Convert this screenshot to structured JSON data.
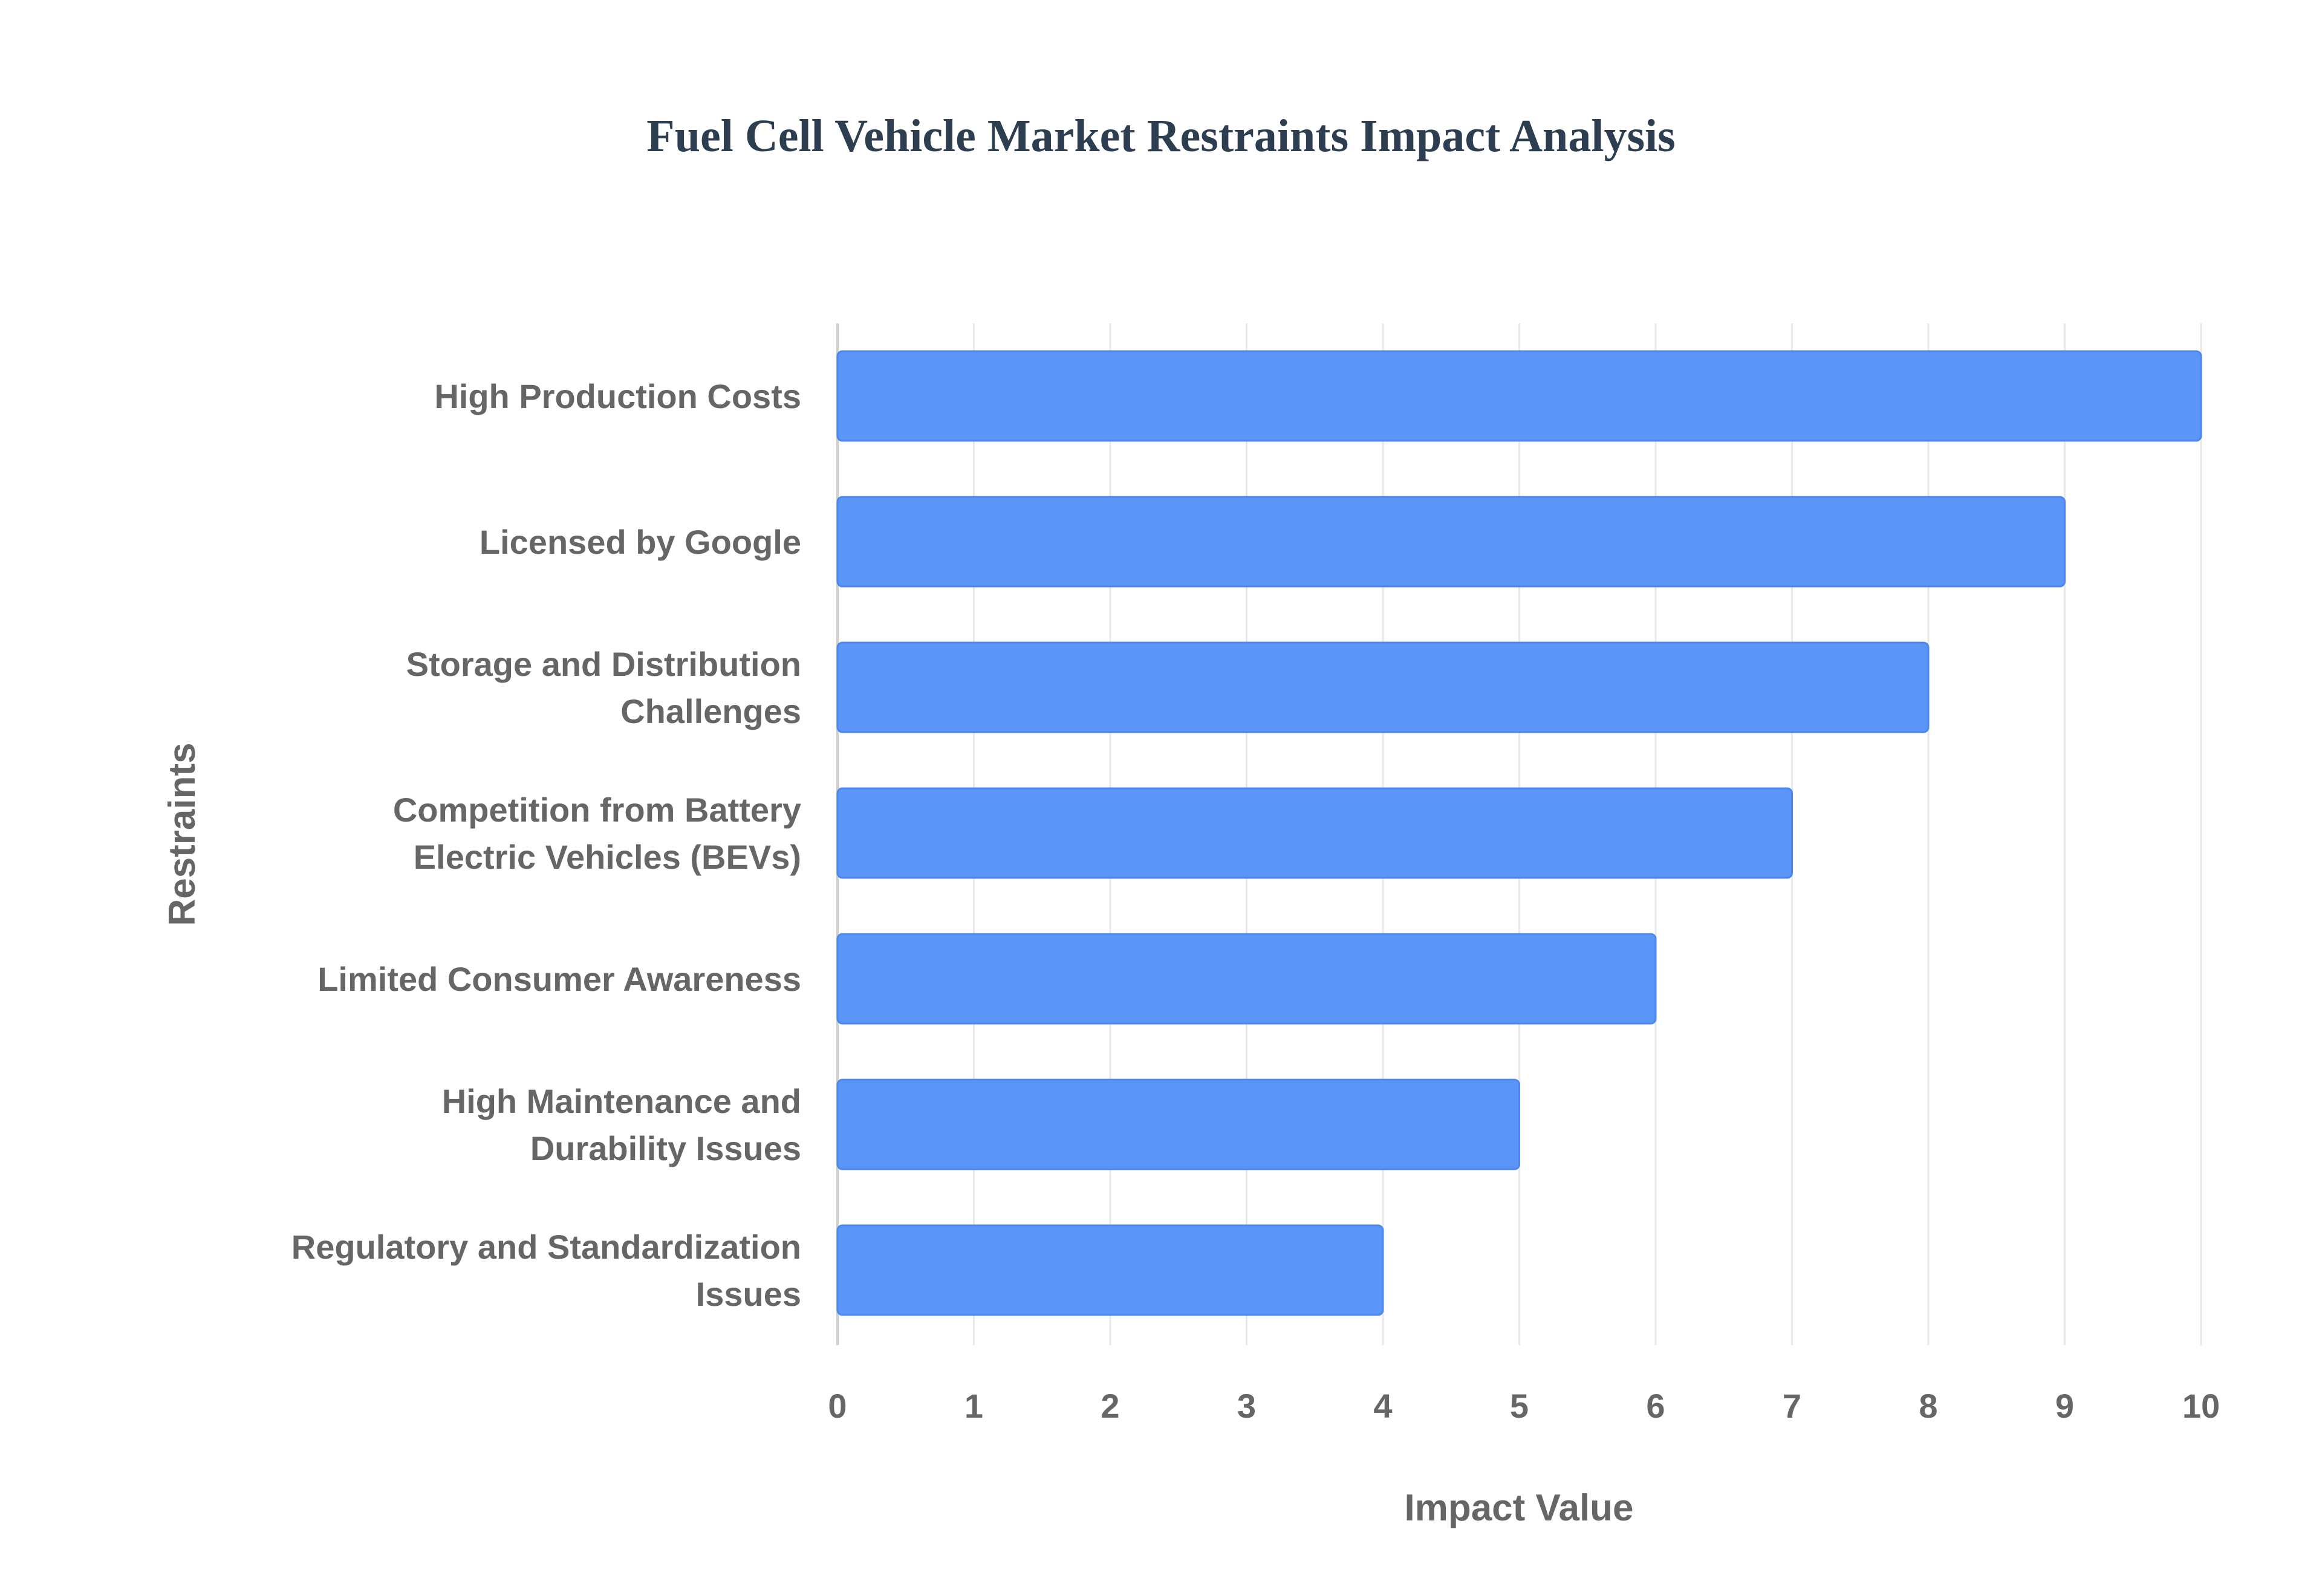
{
  "chart_data": {
    "type": "bar",
    "orientation": "horizontal",
    "title": "Fuel Cell Vehicle Market Restraints Impact Analysis",
    "xlabel": "Impact Value",
    "ylabel": "Restraints",
    "xlim": [
      0,
      10
    ],
    "xticks": [
      0,
      1,
      2,
      3,
      4,
      5,
      6,
      7,
      8,
      9,
      10
    ],
    "grid": true,
    "legend": "none",
    "categories": [
      [
        "High Production Costs"
      ],
      [
        "Licensed by Google"
      ],
      [
        "Storage and Distribution",
        "Challenges"
      ],
      [
        "Competition from Battery",
        "Electric Vehicles (BEVs)"
      ],
      [
        "Limited Consumer Awareness"
      ],
      [
        "High Maintenance and",
        "Durability Issues"
      ],
      [
        "Regulatory and Standardization",
        "Issues"
      ]
    ],
    "values": [
      10,
      9,
      8,
      7,
      6,
      5,
      4
    ]
  },
  "colors": {
    "bar_fill": "#5b95f8",
    "bar_stroke": "#4d87ee",
    "title": "#2c3e50",
    "text": "#666666",
    "grid": "#e8e8e8",
    "axis": "#cfcfcf"
  }
}
